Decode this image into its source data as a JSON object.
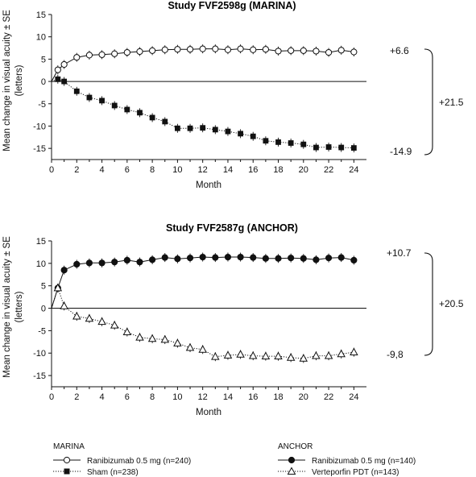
{
  "chart_data": [
    {
      "type": "line",
      "title": "Study FVF2598g (MARINA)",
      "xlabel": "Month",
      "ylabel_line1": "Mean change in visual acuity ± SE",
      "ylabel_line2": "(letters)",
      "xlim": [
        0,
        25
      ],
      "ylim": [
        -17.5,
        15
      ],
      "xticks": [
        0,
        2,
        4,
        6,
        8,
        10,
        12,
        14,
        16,
        18,
        20,
        22,
        24
      ],
      "yticks": [
        15,
        10,
        5,
        0,
        -5,
        -10,
        -15
      ],
      "series": [
        {
          "key": "ranibizumab",
          "marker": "open-circle",
          "line": "solid",
          "x": [
            0.5,
            1,
            2,
            3,
            4,
            5,
            6,
            7,
            8,
            9,
            10,
            11,
            12,
            13,
            14,
            15,
            16,
            17,
            18,
            19,
            20,
            21,
            22,
            23,
            24
          ],
          "values": [
            2.6,
            3.8,
            5.4,
            5.9,
            6.0,
            6.2,
            6.5,
            6.7,
            6.9,
            7.1,
            7.2,
            7.2,
            7.3,
            7.3,
            7.1,
            7.3,
            7.1,
            7.2,
            6.8,
            6.9,
            6.9,
            6.8,
            6.5,
            7.0,
            6.6
          ]
        },
        {
          "key": "sham",
          "marker": "filled-square",
          "line": "dotted",
          "x": [
            0.5,
            1,
            2,
            3,
            4,
            5,
            6,
            7,
            8,
            9,
            10,
            11,
            12,
            13,
            14,
            15,
            16,
            17,
            18,
            19,
            20,
            21,
            22,
            23,
            24
          ],
          "values": [
            0.5,
            0.0,
            -2.2,
            -3.6,
            -4.3,
            -5.4,
            -6.3,
            -7.0,
            -8.1,
            -9.0,
            -10.5,
            -10.5,
            -10.4,
            -10.8,
            -11.2,
            -11.7,
            -12.3,
            -13.3,
            -13.6,
            -13.8,
            -14.1,
            -14.8,
            -14.7,
            -14.8,
            -14.9
          ]
        }
      ],
      "annotations": [
        "+6.6",
        "-14.9",
        "+21.5"
      ]
    },
    {
      "type": "line",
      "title": "Study FVF2587g (ANCHOR)",
      "xlabel": "Month",
      "ylabel_line1": "Mean change in visual acuity ± SE",
      "ylabel_line2": "(letters)",
      "xlim": [
        0,
        25
      ],
      "ylim": [
        -17.5,
        15
      ],
      "xticks": [
        0,
        2,
        4,
        6,
        8,
        10,
        12,
        14,
        16,
        18,
        20,
        22,
        24
      ],
      "yticks": [
        15,
        10,
        5,
        0,
        -5,
        -10,
        -15
      ],
      "series": [
        {
          "key": "ranibizumab",
          "marker": "filled-circle",
          "line": "solid",
          "x": [
            0.5,
            1,
            2,
            3,
            4,
            5,
            6,
            7,
            8,
            9,
            10,
            11,
            12,
            13,
            14,
            15,
            16,
            17,
            18,
            19,
            20,
            21,
            22,
            23,
            24
          ],
          "values": [
            4.5,
            8.5,
            9.8,
            10.1,
            10.1,
            10.3,
            10.7,
            10.3,
            10.8,
            11.3,
            11.0,
            11.2,
            11.4,
            11.3,
            11.4,
            11.4,
            11.3,
            11.1,
            11.1,
            11.2,
            11.1,
            10.8,
            11.2,
            11.3,
            10.7
          ]
        },
        {
          "key": "verteporfin",
          "marker": "open-triangle",
          "line": "dotted",
          "x": [
            0.5,
            1,
            2,
            3,
            4,
            5,
            6,
            7,
            8,
            9,
            10,
            11,
            12,
            13,
            14,
            15,
            16,
            17,
            18,
            19,
            20,
            21,
            22,
            23,
            24
          ],
          "values": [
            4.5,
            0.5,
            -1.8,
            -2.3,
            -3.0,
            -3.8,
            -5.3,
            -6.5,
            -6.8,
            -7.0,
            -7.8,
            -8.8,
            -9.2,
            -10.8,
            -10.5,
            -10.3,
            -10.6,
            -10.7,
            -10.7,
            -11.0,
            -11.2,
            -10.6,
            -10.6,
            -10.2,
            -9.8
          ]
        }
      ],
      "annotations": [
        "+10.7",
        "-9,8",
        "+20.5"
      ]
    }
  ],
  "legend": {
    "marina": {
      "heading": "MARINA",
      "items": [
        "Ranibizumab 0.5 mg (n=240)",
        "Sham (n=238)"
      ]
    },
    "anchor": {
      "heading": "ANCHOR",
      "items": [
        "Ranibizumab 0.5 mg (n=140)",
        "Verteporfin PDT (n=143)"
      ]
    }
  }
}
